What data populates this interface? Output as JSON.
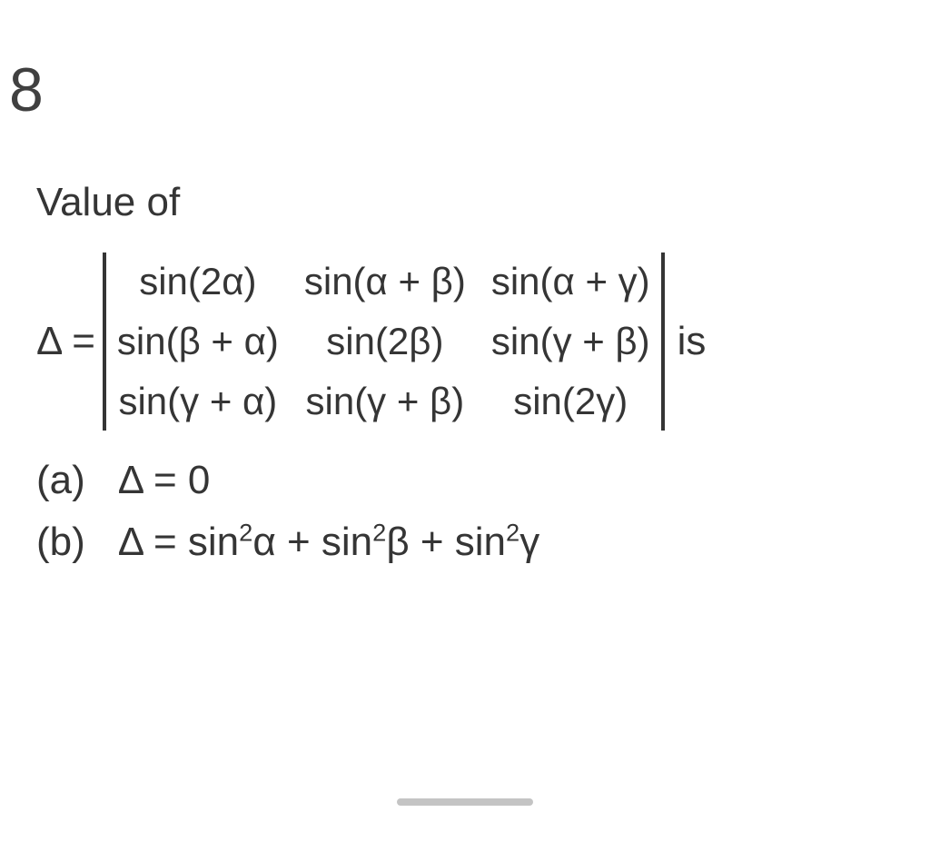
{
  "question_number": "8",
  "prompt": "Value of",
  "delta_eq": "Δ =",
  "determinant": {
    "r1c1": "sin(2α)",
    "r1c2": "sin(α + β)",
    "r1c3": "sin(α + γ)",
    "r2c1": "sin(β + α)",
    "r2c2": "sin(2β)",
    "r2c3": "sin(γ + β)",
    "r3c1": "sin(γ + α)",
    "r3c2": "sin(γ + β)",
    "r3c3": "sin(2γ)"
  },
  "trailing": "is",
  "options": {
    "a": {
      "label": "(a)",
      "text": "Δ = 0"
    },
    "b": {
      "label": "(b)",
      "text_html": "Δ = sin²α + sin²β + sin²γ"
    }
  },
  "colors": {
    "text": "#353535",
    "background": "#ffffff",
    "scroll_indicator": "#c4c4c4"
  },
  "typography": {
    "question_number_fontsize": 68,
    "body_fontsize": 44,
    "det_cell_fontsize": 42
  }
}
